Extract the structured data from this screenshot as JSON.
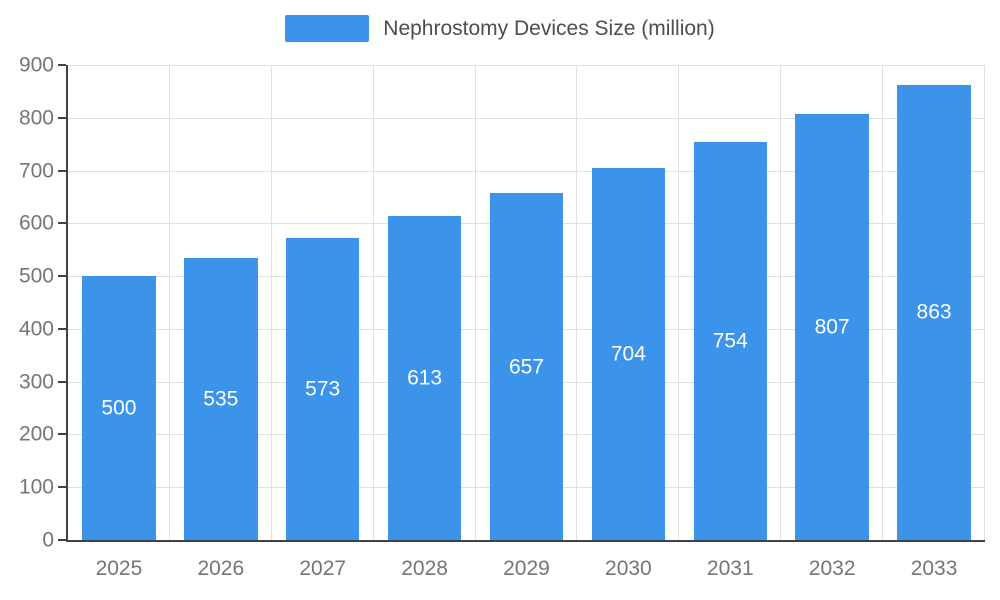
{
  "chart_data": {
    "type": "bar",
    "title": "Nephrostomy Devices Size (million)",
    "series": [
      {
        "name": "Nephrostomy Devices Size (million)",
        "values": [
          500,
          535,
          573,
          613,
          657,
          704,
          754,
          807,
          863
        ]
      }
    ],
    "categories": [
      "2025",
      "2026",
      "2027",
      "2028",
      "2029",
      "2030",
      "2031",
      "2032",
      "2033"
    ],
    "values": [
      500,
      535,
      573,
      613,
      657,
      704,
      754,
      807,
      863
    ],
    "xlabel": "",
    "ylabel": "",
    "ylim": [
      0,
      900
    ],
    "ytick_step": 100,
    "grid": true,
    "legend_position": "top",
    "colors": {
      "bar": "#3b93ea",
      "axis_line": "#424242",
      "gridline": "#e0e0e0",
      "tick_label": "#757575",
      "legend_text": "#4d4d4d",
      "value_label": "#ffffff",
      "background": "#ffffff"
    }
  }
}
